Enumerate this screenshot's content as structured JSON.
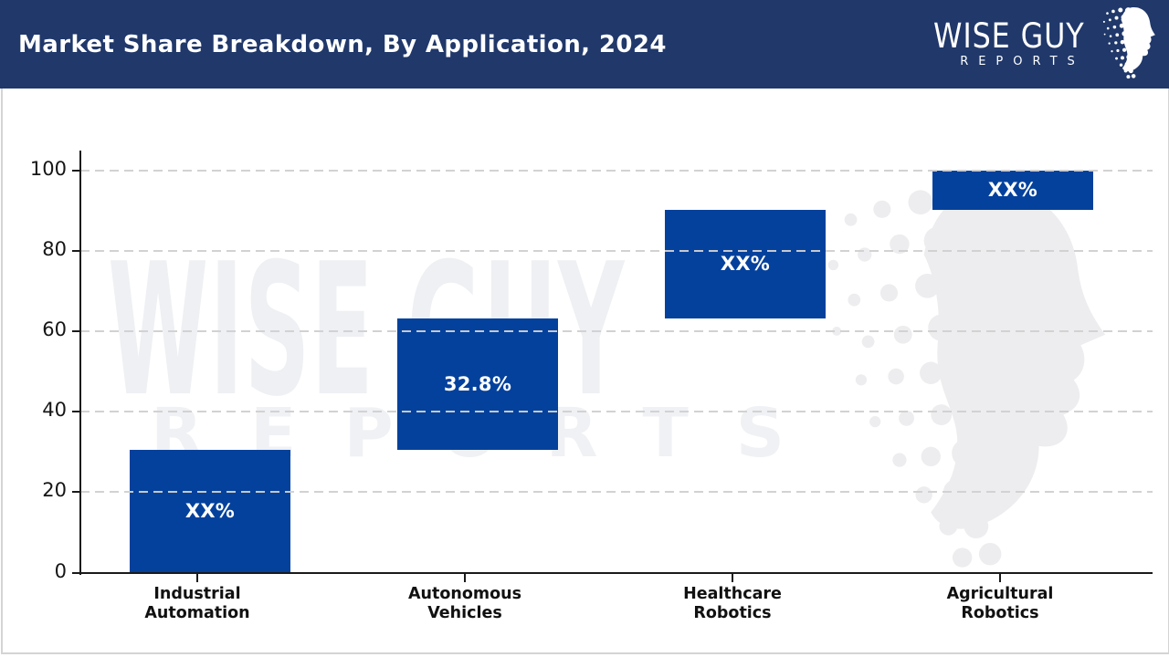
{
  "header": {
    "title": "Market Share Breakdown, By Application, 2024",
    "logo": {
      "name_line": "WISE GUY",
      "sub_line": "REPORTS"
    }
  },
  "watermark": {
    "name_line": "WISE GUY",
    "sub_line": "REPORTS"
  },
  "chart_data": {
    "type": "bar",
    "subtype": "floating-segment-waterfall",
    "title": "Market Share Breakdown, By Application, 2024",
    "categories": [
      [
        "Industrial",
        "Automation"
      ],
      [
        "Autonomous",
        "Vehicles"
      ],
      [
        "Healthcare",
        "Robotics"
      ],
      [
        "Agricultural",
        "Robotics"
      ]
    ],
    "series": [
      {
        "category": "Industrial Automation",
        "start": 0,
        "end": 30.5,
        "label": "XX%"
      },
      {
        "category": "Autonomous Vehicles",
        "start": 30.5,
        "end": 63.3,
        "label": "32.8%"
      },
      {
        "category": "Healthcare Robotics",
        "start": 63.3,
        "end": 90.3,
        "label": "XX%"
      },
      {
        "category": "Agricultural Robotics",
        "start": 90.3,
        "end": 100,
        "label": "XX%"
      }
    ],
    "yticks": [
      0,
      20,
      40,
      60,
      80,
      100
    ],
    "ylim": [
      0,
      105
    ],
    "xlabel": "",
    "ylabel": "",
    "legend": "none",
    "grid": "horizontal-dashed"
  },
  "colors": {
    "header_bg": "#20386a",
    "bar": "#04419c",
    "bar_label": "#ffffff",
    "grid": "#d0d0d0",
    "axis": "#1a1a1a",
    "watermark": "#eef0f3"
  }
}
